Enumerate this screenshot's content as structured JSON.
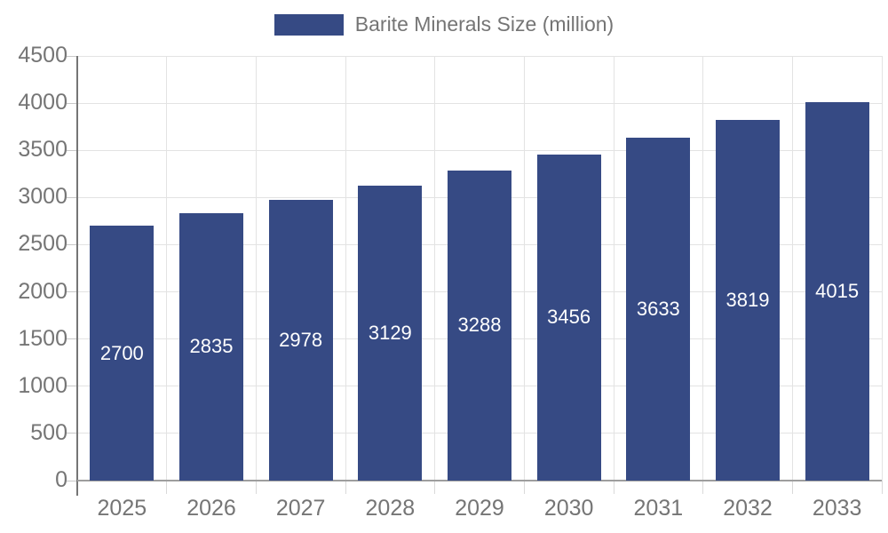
{
  "legend": {
    "label": "Barite Minerals Size (million)"
  },
  "colors": {
    "bar": "#364a84",
    "grid": "#e3e3e3",
    "axis_line": "#757575",
    "baseline": "#9e9e9e",
    "tick": "#c8c8c8",
    "axis_text": "#757575",
    "value_text": "#ffffff",
    "background": "#ffffff"
  },
  "chart_data": {
    "type": "bar",
    "title": "Barite Minerals Size (million)",
    "series_name": "Barite Minerals Size (million)",
    "categories": [
      "2025",
      "2026",
      "2027",
      "2028",
      "2029",
      "2030",
      "2031",
      "2032",
      "2033"
    ],
    "values": [
      2700,
      2835,
      2978,
      3129,
      3288,
      3456,
      3633,
      3819,
      4015
    ],
    "xlabel": "",
    "ylabel": "",
    "ylim": [
      0,
      4500
    ],
    "ytick_step": 500,
    "yticks": [
      0,
      500,
      1000,
      1500,
      2000,
      2500,
      3000,
      3500,
      4000,
      4500
    ],
    "grid": "both",
    "legend_position": "top-center",
    "value_labels": "inside-middle"
  }
}
